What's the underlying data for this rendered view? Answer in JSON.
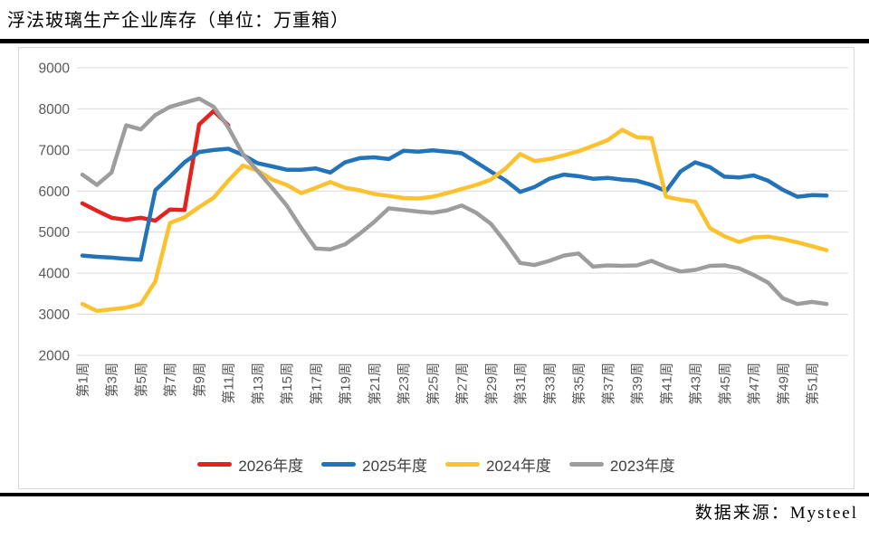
{
  "title": "浮法玻璃生产企业库存（单位：万重箱）",
  "source": "数据来源：Mysteel",
  "chart_data": {
    "type": "line",
    "title": "浮法玻璃生产企业库存（单位：万重箱）",
    "xlabel": "",
    "ylabel": "",
    "ylim": [
      2000,
      9000
    ],
    "y_ticks": [
      2000,
      3000,
      4000,
      5000,
      6000,
      7000,
      8000,
      9000
    ],
    "weeks_total": 52,
    "x_tick_labels": [
      "第1周",
      "第3周",
      "第5周",
      "第7周",
      "第9周",
      "第11周",
      "第13周",
      "第15周",
      "第17周",
      "第19周",
      "第21周",
      "第23周",
      "第25周",
      "第27周",
      "第29周",
      "第31周",
      "第33周",
      "第35周",
      "第37周",
      "第39周",
      "第41周",
      "第43周",
      "第45周",
      "第47周",
      "第49周",
      "第51周"
    ],
    "grid": "horizontal",
    "legend_position": "bottom",
    "series": [
      {
        "name": "2026年度",
        "color": "#e42320",
        "values": [
          5700,
          5520,
          5350,
          5300,
          5350,
          5280,
          5550,
          5540,
          7620,
          7950,
          7600
        ]
      },
      {
        "name": "2025年度",
        "color": "#2273b8",
        "values": [
          4430,
          4400,
          4380,
          4350,
          4330,
          6020,
          6350,
          6700,
          6950,
          7000,
          7030,
          6880,
          6680,
          6600,
          6520,
          6520,
          6550,
          6450,
          6700,
          6800,
          6820,
          6780,
          6980,
          6960,
          6990,
          6960,
          6920,
          6700,
          6470,
          6260,
          5980,
          6100,
          6300,
          6400,
          6360,
          6300,
          6320,
          6280,
          6250,
          6150,
          6000,
          6480,
          6700,
          6580,
          6350,
          6330,
          6380,
          6250,
          6030,
          5860,
          5900,
          5890
        ]
      },
      {
        "name": "2024年度",
        "color": "#fcc12e",
        "values": [
          3250,
          3080,
          3120,
          3160,
          3250,
          3800,
          5220,
          5360,
          5610,
          5840,
          6250,
          6620,
          6500,
          6280,
          6150,
          5950,
          6080,
          6220,
          6080,
          6020,
          5930,
          5880,
          5830,
          5820,
          5860,
          5950,
          6050,
          6150,
          6280,
          6550,
          6900,
          6730,
          6780,
          6870,
          6970,
          7100,
          7240,
          7490,
          7310,
          7290,
          5860,
          5790,
          5740,
          5100,
          4900,
          4760,
          4870,
          4890,
          4830,
          4750,
          4660,
          4560
        ]
      },
      {
        "name": "2023年度",
        "color": "#9d9d9d",
        "values": [
          6400,
          6150,
          6450,
          7600,
          7500,
          7850,
          8050,
          8150,
          8250,
          8050,
          7550,
          6900,
          6490,
          6080,
          5650,
          5100,
          4600,
          4580,
          4700,
          4960,
          5250,
          5580,
          5540,
          5500,
          5470,
          5530,
          5650,
          5470,
          5200,
          4750,
          4250,
          4200,
          4300,
          4430,
          4480,
          4160,
          4190,
          4180,
          4190,
          4300,
          4150,
          4040,
          4080,
          4180,
          4190,
          4120,
          3960,
          3770,
          3390,
          3250,
          3300,
          3250
        ]
      }
    ],
    "style": {
      "grid_color": "#d9d9d9",
      "axis_text_color": "#595959",
      "line_width": 4.5
    }
  }
}
